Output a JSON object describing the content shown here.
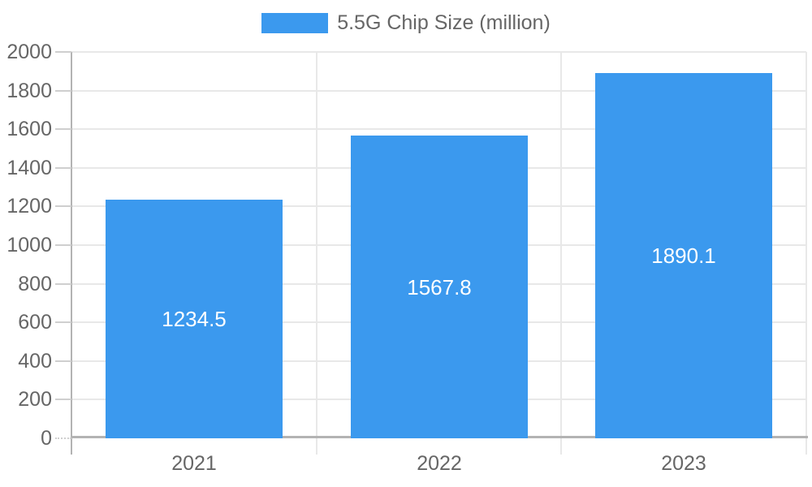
{
  "legend": {
    "items": [
      {
        "label": "5.5G Chip Size (million)",
        "color": "#3B99EE"
      }
    ]
  },
  "chart_data": {
    "type": "bar",
    "title": "",
    "categories": [
      "2021",
      "2022",
      "2023"
    ],
    "series": [
      {
        "name": "5.5G Chip Size (million)",
        "values": [
          1234.5,
          1567.8,
          1890.1
        ]
      }
    ],
    "bar_value_labels": [
      "1234.5",
      "1567.8",
      "1890.1"
    ],
    "xlabel": "",
    "ylabel": "",
    "ylim": [
      0,
      2000
    ],
    "ytick_step": 200,
    "ytick_labels": [
      "0",
      "200",
      "400",
      "600",
      "800",
      "1000",
      "1200",
      "1400",
      "1600",
      "1800",
      "2000"
    ],
    "grid": true,
    "legend_position": "top-center",
    "colors": {
      "bar": "#3B99EE",
      "grid": "#e8e8e8",
      "axis": "#b3b3b3",
      "tick": "#cfcfcf",
      "text": "#666666",
      "bar_label": "#ffffff",
      "background": "#ffffff"
    }
  }
}
